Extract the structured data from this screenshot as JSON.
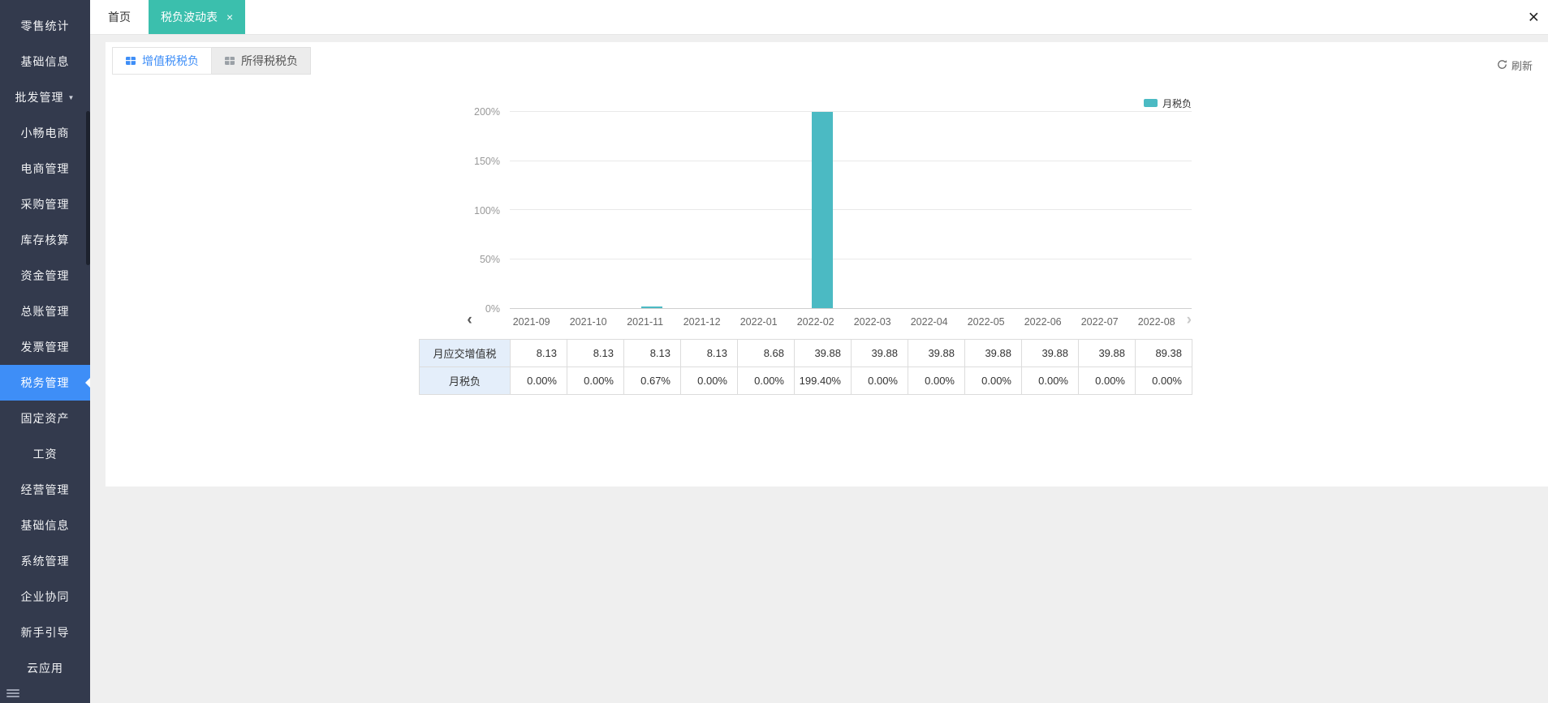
{
  "colors": {
    "accent": "#3e8ef7",
    "tab_active": "#3bbfad",
    "bar": "#4bbac3"
  },
  "window": {
    "close_icon": "×"
  },
  "sidebar": {
    "items": [
      {
        "label": "零售统计"
      },
      {
        "label": "基础信息"
      },
      {
        "label": "批发管理",
        "caret": true
      },
      {
        "label": "小畅电商"
      },
      {
        "label": "电商管理"
      },
      {
        "label": "采购管理"
      },
      {
        "label": "库存核算"
      },
      {
        "label": "资金管理"
      },
      {
        "label": "总账管理"
      },
      {
        "label": "发票管理"
      },
      {
        "label": "税务管理",
        "active": true
      },
      {
        "label": "固定资产"
      },
      {
        "label": "工资"
      },
      {
        "label": "经营管理"
      },
      {
        "label": "基础信息"
      },
      {
        "label": "系统管理"
      },
      {
        "label": "企业协同"
      },
      {
        "label": "新手引导"
      },
      {
        "label": "云应用"
      }
    ]
  },
  "tabbar": {
    "tabs": [
      {
        "label": "首页"
      },
      {
        "label": "税负波动表",
        "active": true
      }
    ],
    "close_icon": "×"
  },
  "panel": {
    "tabs": [
      {
        "label": "增值税税负",
        "active": true
      },
      {
        "label": "所得税税负",
        "active": false
      }
    ],
    "refresh_label": "刷新"
  },
  "chart_data": {
    "type": "bar",
    "title": "",
    "xlabel": "",
    "ylabel": "",
    "categories": [
      "2021-09",
      "2021-10",
      "2021-11",
      "2021-12",
      "2022-01",
      "2022-02",
      "2022-03",
      "2022-04",
      "2022-05",
      "2022-06",
      "2022-07",
      "2022-08"
    ],
    "series": [
      {
        "name": "月税负",
        "values": [
          0,
          0,
          0.67,
          0,
          0,
          199.4,
          0,
          0,
          0,
          0,
          0,
          0
        ]
      }
    ],
    "ylim": [
      0,
      200
    ],
    "yticks": [
      "0%",
      "50%",
      "100%",
      "150%",
      "200%"
    ],
    "grid": true,
    "legend_position": "top-right",
    "prev_icon": "‹",
    "next_icon": "›"
  },
  "table": {
    "rows": [
      {
        "header": "月应交增值税",
        "cells": [
          "8.13",
          "8.13",
          "8.13",
          "8.13",
          "8.68",
          "39.88",
          "39.88",
          "39.88",
          "39.88",
          "39.88",
          "39.88",
          "89.38"
        ]
      },
      {
        "header": "月税负",
        "cells": [
          "0.00%",
          "0.00%",
          "0.67%",
          "0.00%",
          "0.00%",
          "199.40%",
          "0.00%",
          "0.00%",
          "0.00%",
          "0.00%",
          "0.00%",
          "0.00%"
        ]
      }
    ]
  }
}
